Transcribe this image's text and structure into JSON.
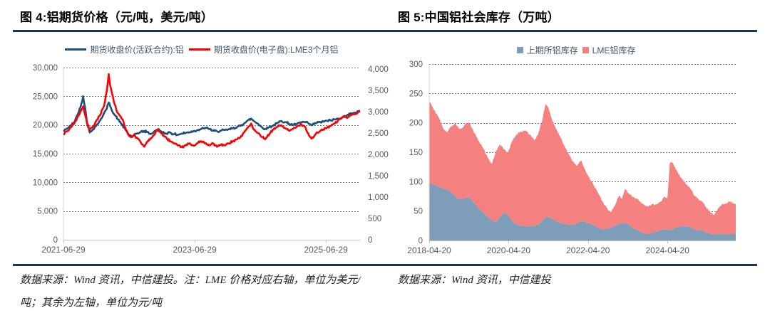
{
  "style": {
    "rule_color": "#17375D",
    "grid_color": "#737373",
    "axis_line_color": "#BFBFBF",
    "axis_text_color": "#595959",
    "legend_text_color": "#44546A"
  },
  "figure4": {
    "footnote": "数据来源：Wind 资讯，中信建投。注：LME 价格对应右轴，单位为美元/吨；其余为左轴，单位为元/吨"
  },
  "figure5": {
    "footnote": "数据来源：Wind 资讯，中信建投"
  },
  "chart_data": [
    {
      "type": "line",
      "title": "图 4:铝期货价格（元/吨，美元/吨）",
      "x_unit": "years since 2021-06-29",
      "xlim": [
        0,
        4.52
      ],
      "x_ticks": [
        {
          "t": 0,
          "label": "2021-06-29"
        },
        {
          "t": 2,
          "label": "2023-06-29"
        },
        {
          "t": 4,
          "label": "2025-06-29"
        }
      ],
      "left_axis": {
        "min": 0,
        "max": 30000,
        "step": 5000,
        "tick_labels": [
          "0",
          "5,000",
          "10,000",
          "15,000",
          "20,000",
          "25,000",
          "30,000"
        ]
      },
      "right_axis": {
        "min": 0,
        "max": 4000,
        "step": 500,
        "tick_labels": [
          "0",
          "500",
          "1,000",
          "1,500",
          "2,000",
          "2,500",
          "3,000",
          "3,500",
          "4,000"
        ]
      },
      "grid": true,
      "legend_position": "top-center",
      "series": [
        {
          "name": "期货收盘价(活跃合约):铝",
          "axis": "left",
          "color": "#1F4E79",
          "unit": "元/吨",
          "points": [
            [
              0,
              18900
            ],
            [
              0.05,
              19300
            ],
            [
              0.1,
              19850
            ],
            [
              0.16,
              20400
            ],
            [
              0.22,
              21900
            ],
            [
              0.26,
              23100
            ],
            [
              0.3,
              25000
            ],
            [
              0.33,
              23000
            ],
            [
              0.36,
              20300
            ],
            [
              0.4,
              18700
            ],
            [
              0.45,
              19200
            ],
            [
              0.5,
              19900
            ],
            [
              0.56,
              20800
            ],
            [
              0.62,
              22100
            ],
            [
              0.66,
              22800
            ],
            [
              0.69,
              23900
            ],
            [
              0.72,
              23100
            ],
            [
              0.77,
              21900
            ],
            [
              0.83,
              21000
            ],
            [
              0.89,
              20100
            ],
            [
              0.95,
              19100
            ],
            [
              1,
              18300
            ],
            [
              1.05,
              17900
            ],
            [
              1.1,
              18450
            ],
            [
              1.16,
              18700
            ],
            [
              1.22,
              18900
            ],
            [
              1.28,
              18800
            ],
            [
              1.33,
              18400
            ],
            [
              1.4,
              18950
            ],
            [
              1.45,
              19300
            ],
            [
              1.5,
              18700
            ],
            [
              1.56,
              18500
            ],
            [
              1.62,
              18750
            ],
            [
              1.68,
              18400
            ],
            [
              1.74,
              18300
            ],
            [
              1.8,
              18500
            ],
            [
              1.86,
              18600
            ],
            [
              1.92,
              18750
            ],
            [
              1.98,
              18900
            ],
            [
              2.04,
              19100
            ],
            [
              2.1,
              19300
            ],
            [
              2.16,
              19500
            ],
            [
              2.22,
              19300
            ],
            [
              2.28,
              19000
            ],
            [
              2.34,
              18900
            ],
            [
              2.4,
              19000
            ],
            [
              2.46,
              19100
            ],
            [
              2.52,
              19250
            ],
            [
              2.58,
              19400
            ],
            [
              2.64,
              19600
            ],
            [
              2.7,
              19850
            ],
            [
              2.76,
              20350
            ],
            [
              2.82,
              20850
            ],
            [
              2.86,
              21100
            ],
            [
              2.9,
              20700
            ],
            [
              2.96,
              20250
            ],
            [
              3.02,
              19650
            ],
            [
              3.08,
              19300
            ],
            [
              3.14,
              19650
            ],
            [
              3.2,
              19950
            ],
            [
              3.26,
              20300
            ],
            [
              3.32,
              20700
            ],
            [
              3.38,
              20500
            ],
            [
              3.44,
              20200
            ],
            [
              3.5,
              19950
            ],
            [
              3.56,
              20200
            ],
            [
              3.62,
              20450
            ],
            [
              3.68,
              20500
            ],
            [
              3.74,
              20200
            ],
            [
              3.78,
              19950
            ],
            [
              3.84,
              20300
            ],
            [
              3.9,
              20500
            ],
            [
              3.96,
              20600
            ],
            [
              4.02,
              20700
            ],
            [
              4.08,
              20800
            ],
            [
              4.14,
              20950
            ],
            [
              4.2,
              21100
            ],
            [
              4.26,
              21400
            ],
            [
              4.32,
              21700
            ],
            [
              4.4,
              22000
            ],
            [
              4.52,
              22500
            ]
          ]
        },
        {
          "name": "期货收盘价(电子盘):LME3个月铝",
          "axis": "right",
          "color": "#FE0000",
          "unit": "美元/吨",
          "points": [
            [
              0,
              2450
            ],
            [
              0.05,
              2520
            ],
            [
              0.1,
              2600
            ],
            [
              0.16,
              2690
            ],
            [
              0.22,
              2860
            ],
            [
              0.26,
              2980
            ],
            [
              0.3,
              3100
            ],
            [
              0.33,
              2900
            ],
            [
              0.36,
              2700
            ],
            [
              0.4,
              2560
            ],
            [
              0.45,
              2630
            ],
            [
              0.5,
              2760
            ],
            [
              0.56,
              2900
            ],
            [
              0.62,
              3120
            ],
            [
              0.66,
              3450
            ],
            [
              0.69,
              3850
            ],
            [
              0.71,
              3600
            ],
            [
              0.74,
              3400
            ],
            [
              0.78,
              3150
            ],
            [
              0.82,
              2960
            ],
            [
              0.86,
              2880
            ],
            [
              0.9,
              2800
            ],
            [
              0.94,
              2610
            ],
            [
              0.98,
              2460
            ],
            [
              1.03,
              2380
            ],
            [
              1.08,
              2430
            ],
            [
              1.13,
              2350
            ],
            [
              1.18,
              2260
            ],
            [
              1.23,
              2160
            ],
            [
              1.28,
              2290
            ],
            [
              1.33,
              2360
            ],
            [
              1.38,
              2430
            ],
            [
              1.43,
              2560
            ],
            [
              1.48,
              2490
            ],
            [
              1.53,
              2410
            ],
            [
              1.58,
              2340
            ],
            [
              1.63,
              2290
            ],
            [
              1.68,
              2240
            ],
            [
              1.74,
              2190
            ],
            [
              1.8,
              2150
            ],
            [
              1.86,
              2190
            ],
            [
              1.92,
              2240
            ],
            [
              1.98,
              2190
            ],
            [
              2.04,
              2240
            ],
            [
              2.1,
              2290
            ],
            [
              2.16,
              2240
            ],
            [
              2.22,
              2190
            ],
            [
              2.28,
              2240
            ],
            [
              2.34,
              2160
            ],
            [
              2.4,
              2210
            ],
            [
              2.46,
              2190
            ],
            [
              2.52,
              2240
            ],
            [
              2.58,
              2290
            ],
            [
              2.64,
              2330
            ],
            [
              2.7,
              2390
            ],
            [
              2.76,
              2510
            ],
            [
              2.82,
              2630
            ],
            [
              2.86,
              2700
            ],
            [
              2.9,
              2560
            ],
            [
              2.96,
              2480
            ],
            [
              3.02,
              2390
            ],
            [
              3.08,
              2340
            ],
            [
              3.14,
              2460
            ],
            [
              3.2,
              2560
            ],
            [
              3.26,
              2630
            ],
            [
              3.32,
              2660
            ],
            [
              3.38,
              2590
            ],
            [
              3.44,
              2530
            ],
            [
              3.5,
              2580
            ],
            [
              3.56,
              2640
            ],
            [
              3.62,
              2690
            ],
            [
              3.68,
              2630
            ],
            [
              3.74,
              2430
            ],
            [
              3.78,
              2350
            ],
            [
              3.84,
              2450
            ],
            [
              3.9,
              2510
            ],
            [
              3.96,
              2560
            ],
            [
              4.02,
              2610
            ],
            [
              4.08,
              2650
            ],
            [
              4.14,
              2710
            ],
            [
              4.2,
              2790
            ],
            [
              4.26,
              2860
            ],
            [
              4.32,
              2830
            ],
            [
              4.4,
              2910
            ],
            [
              4.52,
              2980
            ]
          ]
        }
      ]
    },
    {
      "type": "area",
      "stacked": true,
      "title": "图 5:中国铝社会库存（万吨）",
      "x_unit": "years since 2018-04-20",
      "xlim": [
        0,
        7.72
      ],
      "x_ticks": [
        {
          "t": 0,
          "label": "2018-04-20"
        },
        {
          "t": 2,
          "label": "2020-04-20"
        },
        {
          "t": 4,
          "label": "2022-04-20"
        },
        {
          "t": 6,
          "label": "2024-04-20"
        }
      ],
      "y_axis": {
        "min": 0,
        "max": 300,
        "step": 50,
        "tick_labels": [
          "0",
          "50",
          "100",
          "150",
          "200",
          "250",
          "300"
        ]
      },
      "grid": true,
      "legend_position": "top-center",
      "unit": "万吨",
      "t": [
        0,
        0.12,
        0.25,
        0.37,
        0.45,
        0.55,
        0.65,
        0.72,
        0.8,
        0.9,
        1,
        1.1,
        1.22,
        1.35,
        1.48,
        1.58,
        1.68,
        1.78,
        1.88,
        1.98,
        2.08,
        2.18,
        2.3,
        2.42,
        2.55,
        2.65,
        2.75,
        2.85,
        2.93,
        3,
        3.08,
        3.18,
        3.3,
        3.42,
        3.52,
        3.62,
        3.72,
        3.82,
        3.9,
        4,
        4.12,
        4.25,
        4.38,
        4.5,
        4.58,
        4.68,
        4.78,
        4.85,
        4.93,
        5.02,
        5.12,
        5.25,
        5.38,
        5.5,
        5.62,
        5.72,
        5.82,
        5.92,
        6,
        6.06,
        6.12,
        6.22,
        6.35,
        6.48,
        6.58,
        6.68,
        6.78,
        6.88,
        6.98,
        7.08,
        7.18,
        7.28,
        7.38,
        7.48,
        7.58,
        7.68,
        7.72
      ],
      "series": [
        {
          "name": "上期所铝库存",
          "color": "#7D9DB8",
          "values": [
            98,
            95,
            91,
            88,
            86,
            82,
            76,
            70,
            71,
            72,
            73,
            66,
            57,
            48,
            40,
            34,
            31,
            40,
            48,
            44,
            34,
            28,
            25,
            24,
            24,
            25,
            27,
            33,
            39,
            40,
            37,
            33,
            30,
            28,
            27,
            26,
            29,
            33,
            32,
            30,
            27,
            22,
            19,
            20,
            22,
            25,
            28,
            29,
            30,
            27,
            22,
            17,
            13,
            11,
            13,
            15,
            17,
            19,
            18,
            18,
            19,
            23,
            24,
            24,
            23,
            18,
            17,
            18,
            13,
            11,
            10,
            12,
            11,
            10,
            11,
            12,
            12
          ]
        },
        {
          "name": "LME铝库存",
          "color": "#F58080",
          "values": [
            139,
            127,
            117,
            100,
            98,
            112,
            123,
            123,
            119,
            125,
            128,
            122,
            115,
            110,
            100,
            96,
            121,
            123,
            107,
            106,
            134,
            150,
            160,
            163,
            155,
            145,
            155,
            172,
            194,
            186,
            171,
            159,
            146,
            130,
            119,
            108,
            98,
            103,
            92,
            80,
            70,
            59,
            46,
            32,
            26,
            35,
            48,
            41,
            58,
            53,
            52,
            53,
            49,
            47,
            49,
            46,
            48,
            55,
            54,
            114,
            114,
            97,
            82,
            71,
            65,
            58,
            53,
            48,
            42,
            37,
            33,
            43,
            51,
            53,
            55,
            51,
            50
          ]
        }
      ]
    }
  ]
}
